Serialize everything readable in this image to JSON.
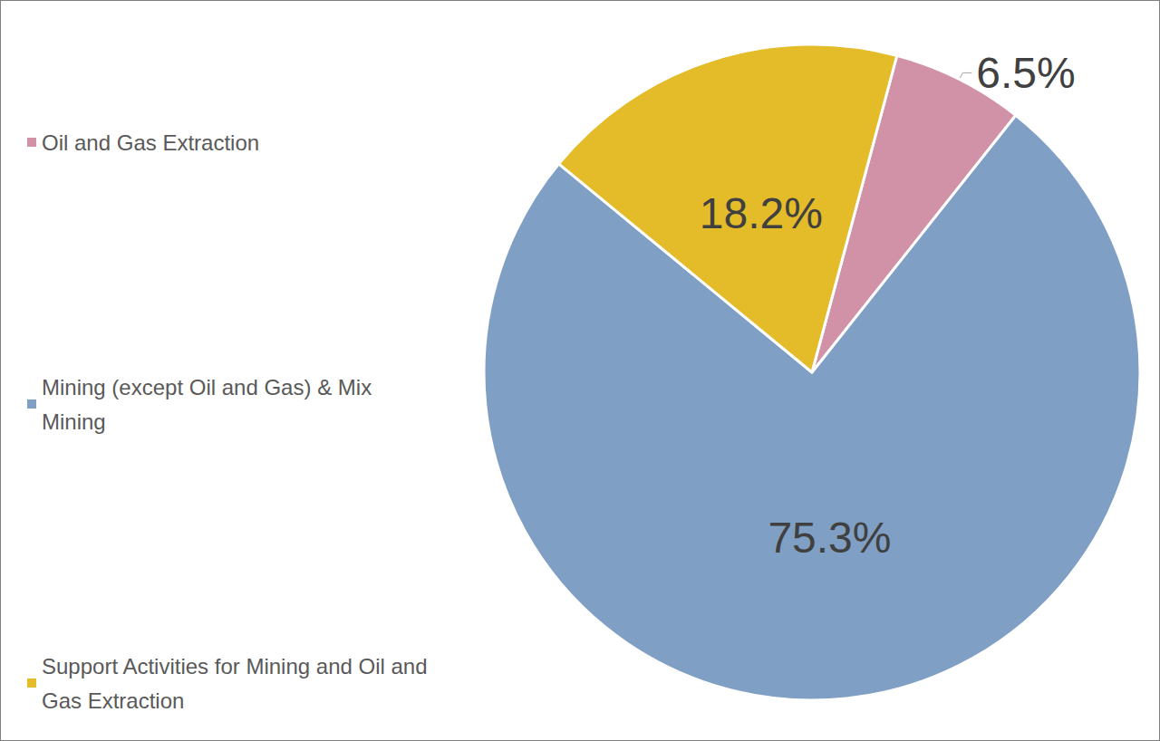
{
  "chart_data": {
    "type": "pie",
    "categories": [
      "Oil and Gas Extraction",
      "Mining (except Oil and Gas) & Mix Mining",
      "Support Activities for Mining and Oil and Gas Extraction"
    ],
    "values": [
      6.5,
      75.3,
      18.2
    ],
    "value_labels": [
      "6.5%",
      "75.3%",
      "18.2%"
    ],
    "colors": [
      "#d191a6",
      "#809fc4",
      "#e4bb29"
    ],
    "data_labels": true,
    "legend": "left"
  }
}
